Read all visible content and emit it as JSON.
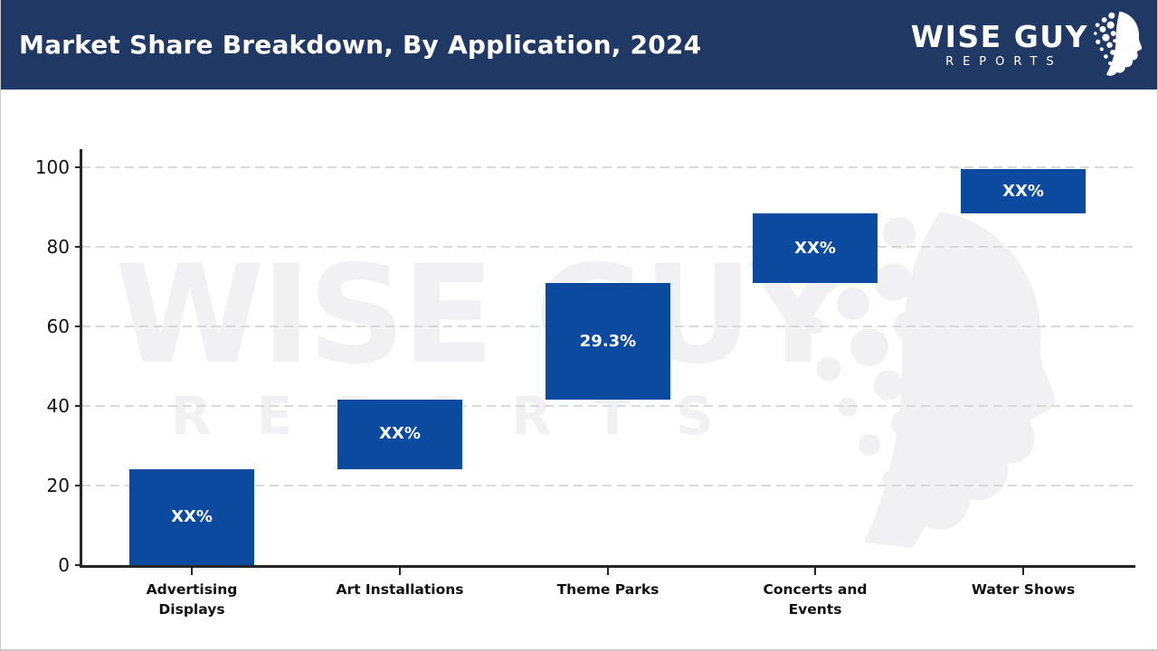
{
  "header": {
    "title": "Market Share Breakdown, By Application, 2024",
    "logo": {
      "line1": "WISE GUY",
      "line2": "REPORTS"
    }
  },
  "watermark": {
    "line1": "WISE GUY",
    "line2": "REPORTS"
  },
  "colors": {
    "header_bg": "#203864",
    "bar": "#0b4a9e",
    "axis": "#262626",
    "grid": "#d9d9d9",
    "text": "#111111",
    "bar_label": "#ffffff",
    "watermark": "#f1f1f4"
  },
  "chart_data": {
    "type": "bar",
    "subtype": "waterfall",
    "title": "Market Share Breakdown, By Application, 2024",
    "categories": [
      "Advertising\nDisplays",
      "Art Installations",
      "Theme Parks",
      "Concerts and\nEvents",
      "Water Shows"
    ],
    "bars": [
      {
        "category": "Advertising Displays",
        "start": 0,
        "end": 24.2,
        "value": 24.2,
        "label": "XX%"
      },
      {
        "category": "Art Installations",
        "start": 24.2,
        "end": 41.6,
        "value": 17.4,
        "label": "XX%"
      },
      {
        "category": "Theme Parks",
        "start": 41.6,
        "end": 70.9,
        "value": 29.3,
        "label": "29.3%"
      },
      {
        "category": "Concerts and Events",
        "start": 70.9,
        "end": 88.4,
        "value": 17.5,
        "label": "XX%"
      },
      {
        "category": "Water Shows",
        "start": 88.4,
        "end": 99.5,
        "value": 11.1,
        "label": "XX%"
      }
    ],
    "yticks": [
      0,
      20,
      40,
      60,
      80,
      100
    ],
    "ylim": [
      0,
      105
    ],
    "xlabel": "",
    "ylabel": "",
    "grid": "horizontal-dashed",
    "legend": "none"
  }
}
